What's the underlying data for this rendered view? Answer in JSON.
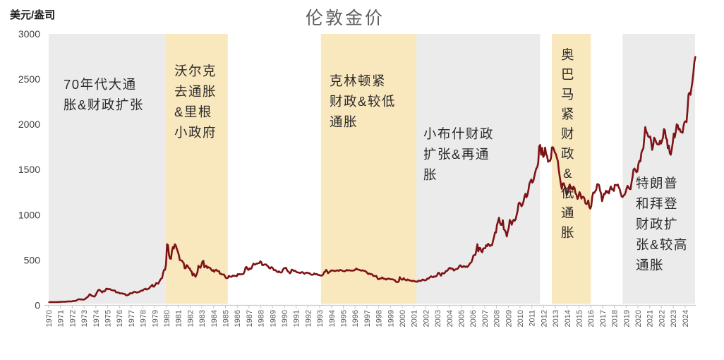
{
  "title": "伦敦金价",
  "y_axis_label": "美元/盎司",
  "colors": {
    "line": "#7E1315",
    "band_gray": "#EBEBEB",
    "band_yellow": "#F9E7BD",
    "axis": "#C8C8C8",
    "x_tick_label": "#595959",
    "y_tick_label": "#3F3F3F",
    "title": "#5F5F5F",
    "annotation": "#2B2B2B"
  },
  "chart_data": {
    "type": "line",
    "title": "伦敦金价",
    "ylabel": "美元/盎司",
    "xlabel": "",
    "ylim": [
      0,
      3000
    ],
    "y_ticks": [
      0,
      500,
      1000,
      1500,
      2000,
      2500,
      3000
    ],
    "x_tick_years": [
      1970,
      1971,
      1972,
      1973,
      1974,
      1975,
      1976,
      1977,
      1978,
      1979,
      1980,
      1981,
      1982,
      1983,
      1984,
      1985,
      1986,
      1987,
      1988,
      1989,
      1990,
      1991,
      1992,
      1993,
      1994,
      1995,
      1996,
      1997,
      1998,
      1999,
      2000,
      2001,
      2002,
      2003,
      2004,
      2005,
      2006,
      2007,
      2008,
      2009,
      2010,
      2011,
      2012,
      2013,
      2014,
      2015,
      2016,
      2017,
      2018,
      2019,
      2020,
      2021,
      2022,
      2023,
      2024
    ],
    "grid": false,
    "legend": false,
    "bands": [
      {
        "label": "70年代大通胀&财政扩张",
        "color_key": "band_gray",
        "start_year": 1970.0,
        "end_year": 1979.9,
        "label_lines": [
          "70年代大通",
          "胀&财政扩张"
        ],
        "orientation": "horizontal"
      },
      {
        "label": "沃尔克去通胀&里根小政府",
        "color_key": "band_yellow",
        "start_year": 1979.9,
        "end_year": 1985.2,
        "label_lines": [
          "沃尔克",
          "去通胀",
          "&里根",
          "小政府"
        ],
        "orientation": "horizontal"
      },
      {
        "label": "克林顿紧财政&较低通胀",
        "color_key": "band_yellow",
        "start_year": 1993.1,
        "end_year": 2001.2,
        "label_lines": [
          "克林顿紧",
          "财政&较低",
          "通胀"
        ],
        "orientation": "horizontal"
      },
      {
        "label": "小布什财政扩张&再通胀",
        "color_key": "band_gray",
        "start_year": 2001.2,
        "end_year": 2011.7,
        "label_lines": [
          "小布什财政",
          "扩张&再通",
          "胀"
        ],
        "orientation": "horizontal"
      },
      {
        "label": "奥巴马紧财政&低通胀",
        "color_key": "band_yellow",
        "start_year": 2012.7,
        "end_year": 2016.0,
        "label_lines": [
          "奥",
          "巴",
          "马",
          "紧",
          "财",
          "政",
          "&",
          "低",
          "通",
          "胀"
        ],
        "orientation": "vertical"
      },
      {
        "label": "特朗普和拜登财政扩张&较高通胀",
        "color_key": "band_gray",
        "start_year": 2018.7,
        "end_year": 2024.85,
        "label_lines": [
          "特朗普",
          "和拜登",
          "财政扩",
          "张&较高",
          "通胀"
        ],
        "orientation": "horizontal"
      }
    ],
    "series": [
      {
        "name": "伦敦金价",
        "unit": "美元/盎司",
        "start_year": 1970,
        "frequency": "monthly",
        "values": [
          35,
          35,
          35,
          36,
          36,
          35,
          35,
          35,
          36,
          37,
          37,
          37,
          38,
          39,
          39,
          39,
          40,
          40,
          41,
          43,
          42,
          42,
          43,
          44,
          46,
          48,
          48,
          49,
          55,
          62,
          66,
          67,
          65,
          65,
          63,
          64,
          65,
          74,
          84,
          90,
          102,
          120,
          120,
          107,
          103,
          100,
          95,
          107,
          129,
          150,
          168,
          172,
          163,
          154,
          143,
          155,
          152,
          159,
          182,
          184,
          176,
          180,
          178,
          170,
          167,
          164,
          165,
          163,
          144,
          143,
          142,
          139,
          131,
          131,
          133,
          128,
          127,
          126,
          112,
          110,
          114,
          116,
          131,
          134,
          132,
          136,
          149,
          149,
          146,
          141,
          143,
          145,
          150,
          158,
          162,
          160,
          173,
          178,
          184,
          175,
          176,
          184,
          189,
          206,
          212,
          227,
          206,
          208,
          227,
          245,
          242,
          239,
          258,
          279,
          295,
          301,
          355,
          392,
          392,
          455,
          675,
          665,
          554,
          517,
          514,
          600,
          644,
          627,
          674,
          661,
          623,
          594,
          557,
          499,
          498,
          495,
          480,
          465,
          409,
          410,
          444,
          437,
          413,
          410,
          384,
          374,
          330,
          350,
          334,
          315,
          339,
          364,
          436,
          422,
          414,
          444,
          481,
          492,
          420,
          433,
          438,
          413,
          422,
          416,
          412,
          394,
          381,
          389,
          371,
          386,
          394,
          381,
          377,
          378,
          347,
          348,
          341,
          340,
          341,
          320,
          303,
          299,
          304,
          325,
          317,
          317,
          317,
          329,
          324,
          326,
          325,
          321,
          345,
          339,
          346,
          341,
          343,
          343,
          349,
          377,
          418,
          424,
          399,
          391,
          408,
          401,
          408,
          439,
          461,
          450,
          451,
          461,
          460,
          466,
          467,
          487,
          477,
          443,
          444,
          451,
          451,
          451,
          437,
          431,
          412,
          407,
          421,
          419,
          404,
          387,
          390,
          384,
          371,
          367,
          375,
          365,
          362,
          367,
          394,
          409,
          410,
          416,
          393,
          374,
          369,
          353,
          362,
          395,
          389,
          380,
          382,
          378,
          366,
          363,
          363,
          358,
          357,
          367,
          367,
          356,
          348,
          359,
          360,
          361,
          354,
          354,
          344,
          338,
          337,
          341,
          353,
          343,
          345,
          344,
          335,
          335,
          329,
          329,
          330,
          342,
          367,
          372,
          392,
          378,
          355,
          364,
          373,
          383,
          387,
          382,
          384,
          377,
          381,
          386,
          385,
          380,
          391,
          390,
          384,
          379,
          378,
          376,
          382,
          391,
          385,
          388,
          386,
          384,
          383,
          383,
          385,
          387,
          400,
          405,
          396,
          393,
          392,
          385,
          383,
          387,
          383,
          381,
          378,
          369,
          355,
          346,
          352,
          344,
          344,
          341,
          324,
          324,
          322,
          325,
          306,
          288,
          289,
          297,
          296,
          308,
          299,
          292,
          293,
          284,
          289,
          296,
          294,
          291,
          287,
          287,
          286,
          282,
          277,
          261,
          256,
          257,
          264,
          311,
          293,
          283,
          284,
          300,
          286,
          280,
          275,
          286,
          281,
          274,
          274,
          270,
          266,
          272,
          266,
          262,
          263,
          260,
          272,
          270,
          268,
          272,
          284,
          283,
          276,
          276,
          281,
          295,
          294,
          303,
          314,
          321,
          313,
          310,
          319,
          317,
          319,
          333,
          357,
          359,
          340,
          328,
          355,
          356,
          351,
          360,
          379,
          379,
          389,
          407,
          414,
          405,
          407,
          403,
          384,
          392,
          398,
          401,
          405,
          420,
          439,
          442,
          424,
          423,
          434,
          429,
          422,
          431,
          425,
          437,
          456,
          470,
          477,
          510,
          550,
          555,
          557,
          611,
          675,
          596,
          634,
          633,
          598,
          586,
          628,
          630,
          631,
          665,
          655,
          680,
          667,
          655,
          665,
          665,
          713,
          755,
          806,
          804,
          890,
          922,
          968,
          910,
          889,
          889,
          940,
          839,
          830,
          807,
          761,
          816,
          858,
          943,
          924,
          890,
          929,
          946,
          934,
          949,
          997,
          1043,
          1127,
          1135,
          1118,
          1095,
          1113,
          1149,
          1205,
          1233,
          1193,
          1216,
          1271,
          1342,
          1370,
          1391,
          1356,
          1373,
          1424,
          1474,
          1511,
          1529,
          1573,
          1756,
          1772,
          1665,
          1739,
          1641,
          1656,
          1743,
          1674,
          1650,
          1586,
          1597,
          1594,
          1626,
          1745,
          1747,
          1722,
          1688,
          1671,
          1628,
          1593,
          1486,
          1414,
          1343,
          1287,
          1347,
          1349,
          1316,
          1276,
          1221,
          1244,
          1301,
          1336,
          1299,
          1288,
          1279,
          1311,
          1296,
          1237,
          1222,
          1176,
          1201,
          1251,
          1227,
          1179,
          1198,
          1199,
          1182,
          1130,
          1118,
          1125,
          1159,
          1086,
          1068,
          1097,
          1200,
          1246,
          1242,
          1260,
          1276,
          1337,
          1340,
          1327,
          1266,
          1236,
          1152,
          1192,
          1234,
          1231,
          1266,
          1246,
          1260,
          1237,
          1283,
          1314,
          1280,
          1282,
          1264,
          1331,
          1330,
          1325,
          1335,
          1303,
          1282,
          1238,
          1202,
          1198,
          1215,
          1221,
          1250,
          1292,
          1320,
          1301,
          1286,
          1284,
          1359,
          1413,
          1499,
          1511,
          1495,
          1471,
          1480,
          1561,
          1597,
          1591,
          1683,
          1716,
          1732,
          1843,
          1969,
          1922,
          1900,
          1866,
          1858,
          1867,
          1808,
          1718,
          1762,
          1853,
          1835,
          1807,
          1784,
          1777,
          1777,
          1820,
          1787,
          1816,
          1856,
          1948,
          1934,
          1848,
          1834,
          1736,
          1765,
          1681,
          1664,
          1726,
          1797,
          1898,
          1855,
          1913,
          2000,
          1992,
          1943,
          1951,
          1918,
          1915,
          1907,
          1984,
          2026,
          2034,
          2025,
          2158,
          2330,
          2351,
          2327,
          2398,
          2470,
          2568,
          2690,
          2745
        ]
      }
    ]
  }
}
